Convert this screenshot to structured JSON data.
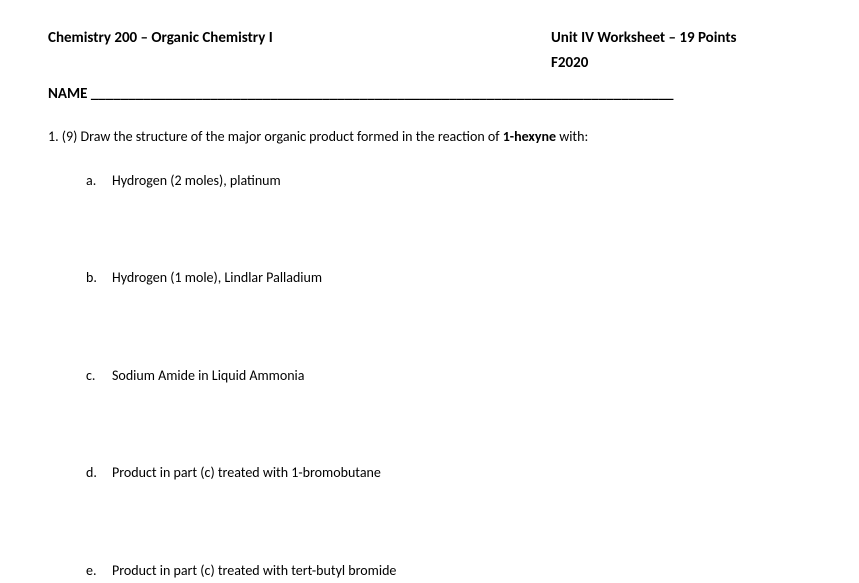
{
  "header": {
    "course": "Chemistry 200 – Organic Chemistry I",
    "worksheet": "Unit IV Worksheet – 19 Points",
    "semester": "F2020",
    "name_label": "NAME",
    "name_line": "______________________________________________________________________________"
  },
  "question1": {
    "number_points": "1.  (9) ",
    "prompt_pre": "Draw the structure of the major organic product formed in the reaction of ",
    "compound": "1-hexyne",
    "prompt_post": " with:",
    "items": [
      {
        "letter": "a.",
        "text": "Hydrogen (2 moles), platinum"
      },
      {
        "letter": "b.",
        "text": "Hydrogen (1 mole), Lindlar Palladium"
      },
      {
        "letter": "c.",
        "text": "Sodium Amide in Liquid Ammonia"
      },
      {
        "letter": "d.",
        "text": " Product in part (c) treated with 1-bromobutane"
      },
      {
        "letter": "e.",
        "text": " Product in part (c) treated with tert-butyl bromide"
      }
    ]
  }
}
